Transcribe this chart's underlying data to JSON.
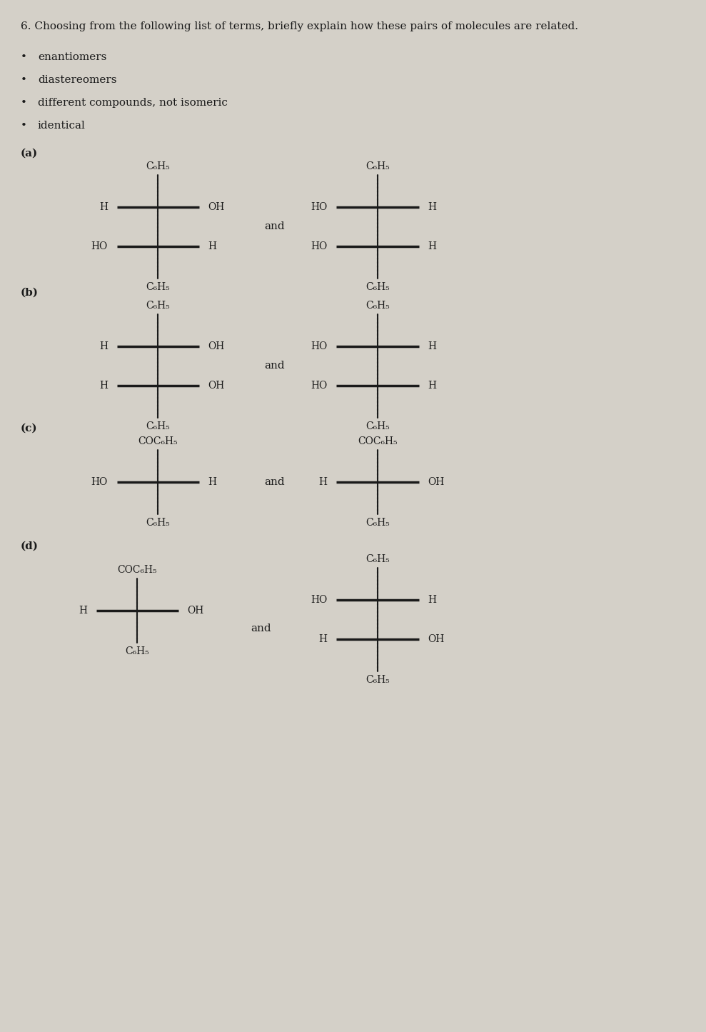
{
  "background_color": "#d4d0c8",
  "title_text": "6. Choosing from the following list of terms, briefly explain how these pairs of molecules are related.",
  "bullet_items": [
    "enantiomers",
    "diastereomers",
    "different compounds, not isomeric",
    "identical"
  ],
  "section_labels": [
    "(a)",
    "(b)",
    "(c)",
    "(d)"
  ],
  "text_color": "#1a1a1a",
  "font_size_title": 11,
  "font_size_body": 11,
  "font_size_label": 11,
  "font_size_chem": 10
}
